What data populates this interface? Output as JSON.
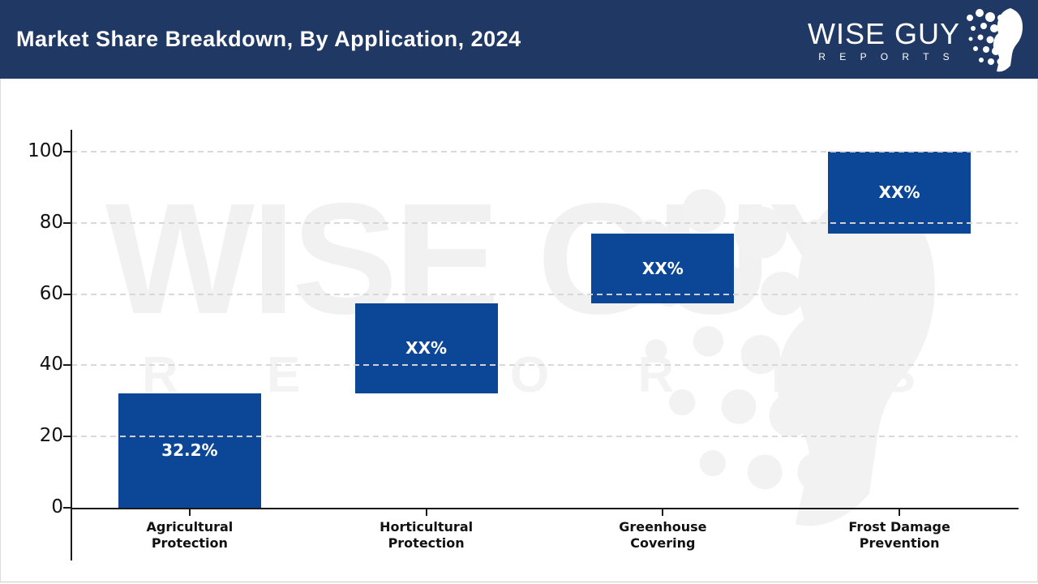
{
  "header": {
    "title": "Market Share Breakdown, By Application, 2024",
    "logo": {
      "name": "WISE GUY",
      "sub": "R E P O R T S"
    }
  },
  "watermark": {
    "line1": "WISE GUY",
    "line2": "R E P O R T S"
  },
  "colors": {
    "header_bg": "#1f3864",
    "bar": "#0b4697",
    "grid": "#d7d7d7",
    "axis": "#1a1a1a",
    "bar_label_text": "#ffffff",
    "watermark": "#f1f1f1"
  },
  "chart_data": {
    "type": "bar",
    "variant": "waterfall",
    "title": "Market Share Breakdown, By Application, 2024",
    "categories": [
      "Agricultural Protection",
      "Horticultural Protection",
      "Greenhouse Covering",
      "Frost Damage Prevention"
    ],
    "category_lines": [
      [
        "Agricultural",
        "Protection"
      ],
      [
        "Horticultural",
        "Protection"
      ],
      [
        "Greenhouse",
        "Covering"
      ],
      [
        "Frost Damage",
        "Prevention"
      ]
    ],
    "segments": [
      {
        "category": "Agricultural Protection",
        "start": 0,
        "end": 32.2,
        "label": "32.2%"
      },
      {
        "category": "Horticultural Protection",
        "start": 32.2,
        "end": 57.5,
        "label": "XX%"
      },
      {
        "category": "Greenhouse Covering",
        "start": 57.5,
        "end": 77,
        "label": "XX%"
      },
      {
        "category": "Frost Damage Prevention",
        "start": 77,
        "end": 100,
        "label": "XX%"
      }
    ],
    "ylim": [
      0,
      100
    ],
    "yticks": [
      0,
      20,
      40,
      60,
      80,
      100
    ],
    "xlabel": "",
    "ylabel": "",
    "grid": "horizontal-dashed",
    "legend": "none",
    "bar_color": "#0b4697"
  }
}
